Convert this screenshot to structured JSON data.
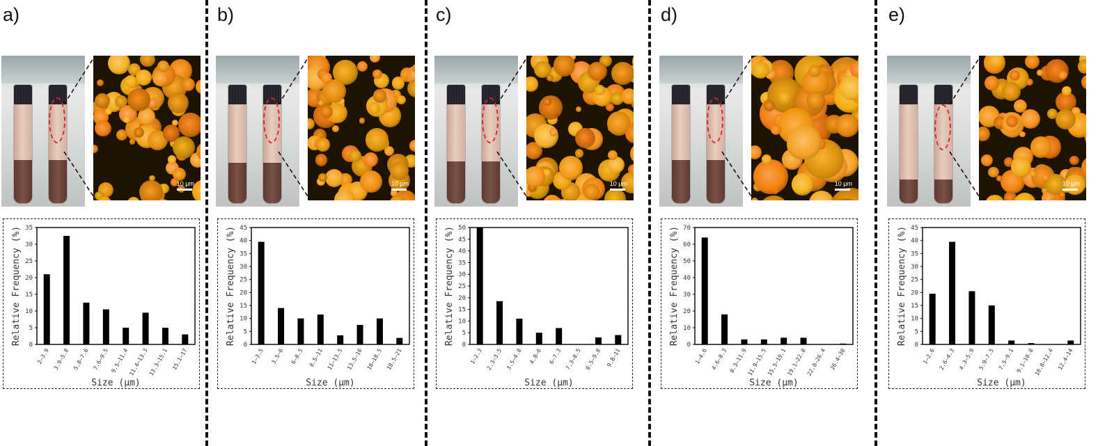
{
  "figure": {
    "scale_label": "10 μm",
    "photo_colors": {
      "emulsion": "#e8cdbf",
      "sediment": "#6b453c",
      "cap": "#26262d",
      "ellipse": "#e0232a",
      "micro_bg": "#1e1202",
      "droplet": "#f0961e"
    }
  },
  "chart_data": [
    {
      "panel": "a)",
      "type": "bar",
      "xlabel": "Size (μm)",
      "ylabel": "Relative Frequency (%)",
      "categories": [
        "2–3.9",
        "3.9–5.8",
        "5.8–7.6",
        "7.6–9.5",
        "9.5–11.4",
        "11.4–13.3",
        "13.3–15.1",
        "15.1–17"
      ],
      "values": [
        21,
        32.5,
        12.5,
        10.5,
        5,
        9.5,
        5,
        3
      ],
      "ylim": [
        0,
        35
      ],
      "yticks": [
        0,
        5,
        10,
        15,
        20,
        25,
        30,
        35
      ],
      "grid": false
    },
    {
      "panel": "b)",
      "type": "bar",
      "xlabel": "Size (μm)",
      "ylabel": "Relative Frequency (%)",
      "categories": [
        "1–3.5",
        "3.5–6",
        "6–8.5",
        "8.5–11",
        "11–13.5",
        "13.5–16",
        "16–18.5",
        "18.5–21"
      ],
      "values": [
        39.5,
        14,
        10,
        11.5,
        3.5,
        7.5,
        10,
        2.5
      ],
      "ylim": [
        0,
        45
      ],
      "yticks": [
        0,
        5,
        10,
        15,
        20,
        25,
        30,
        35,
        40,
        45
      ],
      "grid": false
    },
    {
      "panel": "c)",
      "type": "bar",
      "xlabel": "Size (μm)",
      "ylabel": "Relative Frequency (%)",
      "categories": [
        "1–2.3",
        "2.3–3.5",
        "3.5–4.8",
        "4.8–6",
        "6–7.3",
        "7.3–8.5",
        "8.5–9.8",
        "9.8–11"
      ],
      "values": [
        50,
        18.5,
        11,
        5,
        7,
        0,
        3,
        4
      ],
      "ylim": [
        0,
        50
      ],
      "yticks": [
        0,
        5,
        10,
        15,
        20,
        25,
        30,
        35,
        40,
        45,
        50
      ],
      "grid": false
    },
    {
      "panel": "d)",
      "type": "bar",
      "xlabel": "Size (μm)",
      "ylabel": "Relative Frequency (%)",
      "categories": [
        "1–4.6",
        "4.6–8.3",
        "8.3–11.9",
        "11.9–15.5",
        "15.5–19.1",
        "19.1–22.8",
        "22.8–26.4",
        "26.4–30"
      ],
      "values": [
        64,
        18,
        3,
        3,
        4,
        4,
        0,
        0.5
      ],
      "ylim": [
        0,
        70
      ],
      "yticks": [
        0,
        10,
        20,
        30,
        40,
        50,
        60,
        70
      ],
      "grid": false
    },
    {
      "panel": "e)",
      "type": "bar",
      "xlabel": "Size (μm)",
      "ylabel": "Relative Frequency (%)",
      "categories": [
        "1–2.6",
        "2.6–4.3",
        "4.3–5.9",
        "5.9–7.5",
        "7.5–9.1",
        "9.1–10.8",
        "10.8–12.4",
        "12.4–14"
      ],
      "values": [
        19.5,
        39.5,
        20.5,
        15,
        1.5,
        0.5,
        0,
        1.5
      ],
      "ylim": [
        0,
        45
      ],
      "yticks": [
        0,
        5,
        10,
        15,
        20,
        25,
        30,
        35,
        40,
        45
      ],
      "grid": false
    }
  ]
}
